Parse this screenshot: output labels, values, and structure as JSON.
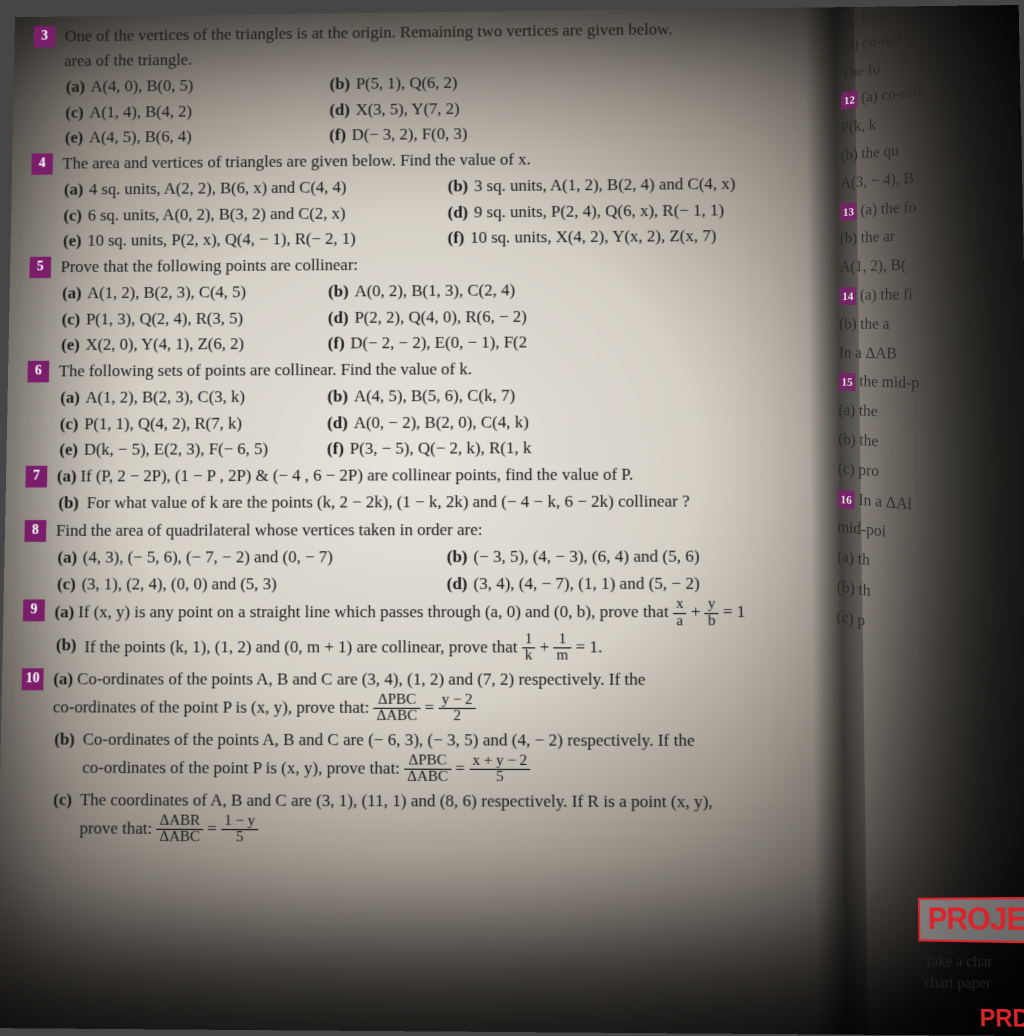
{
  "q3": {
    "num": "3",
    "text": "One of the vertices of the triangles is at the origin. Remaining two vertices are given below.",
    "text2": "area of the triangle.",
    "opts": {
      "a": "A(4, 0), B(0, 5)",
      "b": "P(5, 1), Q(6, 2)",
      "c": "A(1, 4), B(4, 2)",
      "d": "X(3, 5), Y(7, 2)",
      "e": "A(4, 5), B(6, 4)",
      "f": "D(− 3, 2), F(0, 3)"
    }
  },
  "q4": {
    "num": "4",
    "text": "The area and vertices of triangles are given below. Find the value of x.",
    "opts": {
      "a": "4 sq. units, A(2, 2), B(6, x) and C(4, 4)",
      "b": "3 sq. units, A(1, 2), B(2, 4) and C(4, x)",
      "c": "6 sq. units, A(0, 2), B(3, 2) and C(2, x)",
      "d": "9 sq. units, P(2, 4), Q(6, x), R(− 1, 1)",
      "e": "10 sq. units, P(2, x), Q(4, − 1), R(− 2, 1)",
      "f": "10 sq. units, X(4, 2), Y(x, 2), Z(x, 7)"
    }
  },
  "q5": {
    "num": "5",
    "text": "Prove that the following points are collinear:",
    "opts": {
      "a": "A(1, 2), B(2, 3), C(4, 5)",
      "b": "A(0, 2), B(1, 3), C(2, 4)",
      "c": "P(1, 3), Q(2, 4), R(3, 5)",
      "d": "P(2, 2), Q(4, 0), R(6, − 2)",
      "e": "X(2, 0), Y(4, 1), Z(6, 2)",
      "f": "D(− 2, − 2), E(0, − 1), F(2"
    }
  },
  "q6": {
    "num": "6",
    "text": "The following sets of points are collinear. Find the value of k.",
    "opts": {
      "a": "A(1, 2), B(2, 3), C(3, k)",
      "b": "A(4, 5), B(5, 6), C(k, 7)",
      "c": "P(1, 1), Q(4, 2), R(7, k)",
      "d": "A(0, − 2), B(2, 0), C(4, k)",
      "e": "D(k, − 5), E(2, 3), F(− 6, 5)",
      "f": "P(3, − 5), Q(− 2, k), R(1, k"
    }
  },
  "q7": {
    "num": "7",
    "a": "If (P, 2 − 2P), (1 − P , 2P) & (− 4 , 6 − 2P) are collinear points, find the value of P.",
    "b": "For what value of k are the points (k, 2 − 2k), (1 − k, 2k) and (− 4 − k, 6 − 2k) collinear ?"
  },
  "q8": {
    "num": "8",
    "text": "Find the area of quadrilateral whose vertices taken in order are:",
    "opts": {
      "a": "(4, 3), (− 5, 6), (− 7, − 2) and (0, − 7)",
      "b": "(− 3, 5), (4, − 3), (6, 4) and (5, 6)",
      "c": "(3, 1), (2, 4), (0, 0) and (5, 3)",
      "d": "(3, 4), (4, − 7), (1, 1) and (5, − 2)"
    }
  },
  "q9": {
    "num": "9",
    "a_pre": "If (x, y) is any point on a straight line which passes through (a, 0) and (0, b), prove that ",
    "a_fr1n": "x",
    "a_fr1d": "a",
    "a_fr2n": "y",
    "a_fr2d": "b",
    "a_post": " = 1",
    "b_pre": "If the points (k, 1), (1, 2) and (0, m + 1) are collinear, prove that ",
    "b_fr1n": "1",
    "b_fr1d": "k",
    "b_fr2n": "1",
    "b_fr2d": "m",
    "b_post": " = 1."
  },
  "q10": {
    "num": "10",
    "a_pre": "Co-ordinates of the points A, B and C are (3, 4), (1, 2) and (7, 2) respectively. If the",
    "a_l2": "co-ordinates of the point P is (x, y), prove that: ",
    "a_fr1n": "ΔPBC",
    "a_fr1d": "ΔABC",
    "a_fr2n": "y − 2",
    "a_fr2d": "2",
    "b_pre": "Co-ordinates of the points A, B and C are (− 6, 3), (− 3, 5) and (4, − 2) respectively. If the",
    "b_l2": "co-ordinates of the point P is (x, y), prove that: ",
    "b_fr1n": "ΔPBC",
    "b_fr1d": "ΔABC",
    "b_fr2n": "x + y − 2",
    "b_fr2d": "5",
    "c_pre": "The coordinates of A, B and C are (3, 1), (11, 1) and (8, 6) respectively. If R is a point (x, y),",
    "c_l2": "prove that: ",
    "c_fr1n": "ΔABR",
    "c_fr1d": "ΔABC",
    "c_fr2n": "1 − y",
    "c_fr2d": "5"
  },
  "rp": {
    "topfrag": "2), R(2,",
    "d": "(d)   co-ord",
    "thefo": "The fo",
    "a12": "(a)   co-ord",
    "pk": "P(k, k",
    "bq": "(b)   the qu",
    "a3": "A(3, − 4), B",
    "n13": "the fo",
    "atf": "(a)",
    "bar": "(b)   the ar",
    "a12b": "A(1, 2), B(",
    "n14": "the fi",
    "atf2": "(a)",
    "bta": "(b)   the a",
    "inab": "In a ΔAB",
    "n15": "the mid-p",
    "athe": "(a)   the",
    "bthe": "(b)   the",
    "cpro": "(c)   pro",
    "inal": "In a ΔAl",
    "n16": "mid-poi",
    "ath": "(a)   th",
    "bth": "(b)   th",
    "cp": "(c)   p"
  },
  "proje": "PROJE",
  "take": "Take a char",
  "chart": "chart paper",
  "prd": "PRD"
}
